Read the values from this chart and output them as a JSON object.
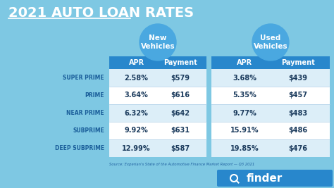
{
  "title": "2021 AUTO LOAN RATES",
  "bg_color": "#7ec8e3",
  "table_header_dark": "#2887cc",
  "table_header_mid": "#4aa8e0",
  "table_body_bg": "#ffffff",
  "bubble_bg": "#4aa8e0",
  "row_labels": [
    "SUPER PRIME",
    "PRIME",
    "NEAR PRIME",
    "SUBPRIME",
    "DEEP SUBPRIME"
  ],
  "new_apr": [
    "2.58%",
    "3.64%",
    "6.32%",
    "9.92%",
    "12.99%"
  ],
  "new_payment": [
    "$579",
    "$616",
    "$642",
    "$631",
    "$587"
  ],
  "used_apr": [
    "3.68%",
    "5.35%",
    "9.77%",
    "15.91%",
    "19.85%"
  ],
  "used_payment": [
    "$439",
    "$457",
    "$483",
    "$486",
    "$476"
  ],
  "source_text": "Source: Experian's State of the Automotive Finance Market Report — Q3 2021",
  "finder_text": "finder",
  "section_headers": [
    "New\nVehicles",
    "Used\nVehicles"
  ],
  "finder_bg": "#2887cc",
  "row_label_color": "#1a5e9a",
  "data_text_color": "#1a3a5c",
  "title_color": "#ffffff",
  "col_header_color": "#ffffff",
  "source_color": "#2060a0"
}
